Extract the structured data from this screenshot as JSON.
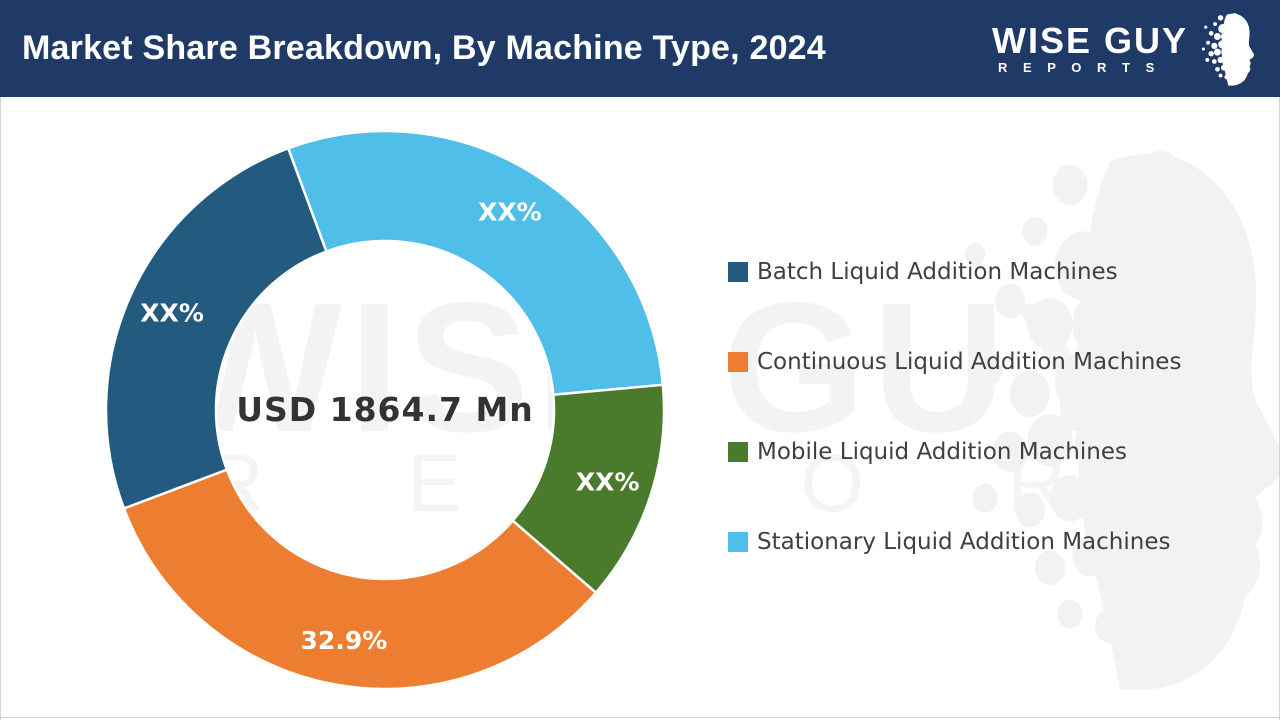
{
  "header": {
    "title": "Market Share Breakdown, By Machine Type, 2024",
    "logo": {
      "brand_line1": "WISE GUY",
      "brand_line2": "R E P O R T S"
    }
  },
  "watermark": {
    "line1": "WISE GUY",
    "line2": "R E P O R T S"
  },
  "chart_data": {
    "type": "pie",
    "subtype": "donut",
    "title": "Market Share Breakdown, By Machine Type, 2024",
    "center_label": "USD 1864.7 Mn",
    "units": "percent of market share",
    "start_angle_deg": 110.3,
    "direction": "clockwise",
    "legend_position": "right",
    "slices": [
      {
        "name": "Stationary Liquid Addition Machines",
        "display_label": "XX%",
        "value_pct": 29.2,
        "color": "#4FBEE8"
      },
      {
        "name": "Mobile Liquid Addition Machines",
        "display_label": "XX%",
        "value_pct": 12.8,
        "color": "#4A7A2C"
      },
      {
        "name": "Continuous Liquid Addition Machines",
        "display_label": "32.9%",
        "value_pct": 32.9,
        "color": "#ED7D31"
      },
      {
        "name": "Batch Liquid Addition Machines",
        "display_label": "XX%",
        "value_pct": 25.1,
        "color": "#235A80"
      }
    ],
    "legend_order": [
      3,
      2,
      1,
      0
    ]
  }
}
